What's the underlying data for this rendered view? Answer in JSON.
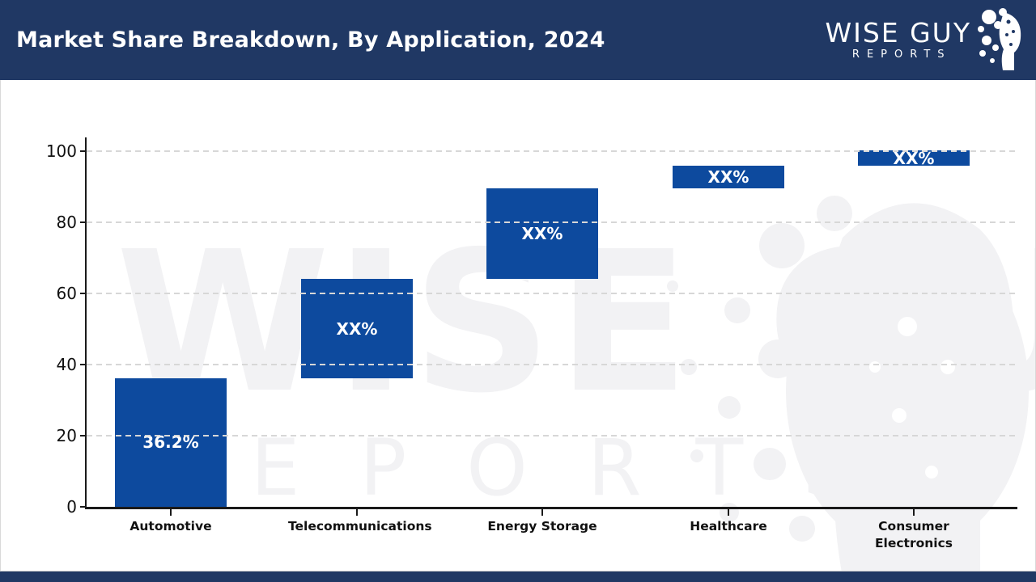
{
  "header": {
    "title": "Market Share Breakdown, By Application, 2024",
    "logo": {
      "brand_top": "WISE GUY",
      "brand_bottom": "REPORTS"
    }
  },
  "watermark": {
    "line1": "WISE GUY",
    "line2": "REPORTS"
  },
  "chart_data": {
    "type": "bar",
    "subtype": "floating-waterfall",
    "title": "Market Share Breakdown, By Application, 2024",
    "categories": [
      "Automotive",
      "Telecommunications",
      "Energy Storage",
      "Healthcare",
      "Consumer Electronics"
    ],
    "bars": [
      {
        "category": "Automotive",
        "start": 0,
        "end": 36.2,
        "label": "36.2%"
      },
      {
        "category": "Telecommunications",
        "start": 36.2,
        "end": 64.0,
        "label": "XX%"
      },
      {
        "category": "Energy Storage",
        "start": 64.0,
        "end": 89.5,
        "label": "XX%"
      },
      {
        "category": "Healthcare",
        "start": 89.5,
        "end": 95.8,
        "label": "XX%"
      },
      {
        "category": "Consumer Electronics",
        "start": 95.8,
        "end": 100.3,
        "label": "XX%"
      }
    ],
    "yticks": [
      0,
      20,
      40,
      60,
      80,
      100
    ],
    "ylim": [
      0,
      105
    ],
    "xlabel": "",
    "ylabel": "",
    "grid": "dashed-horizontal-over-bars",
    "legend": "none"
  },
  "colors": {
    "header_bg": "#203864",
    "footer_bg": "#203864",
    "bar": "#0d4a9e",
    "bar_label": "#ffffff",
    "grid": "#d7d7d7",
    "axis": "#1a1a1a",
    "watermark": "#f2f2f4"
  }
}
